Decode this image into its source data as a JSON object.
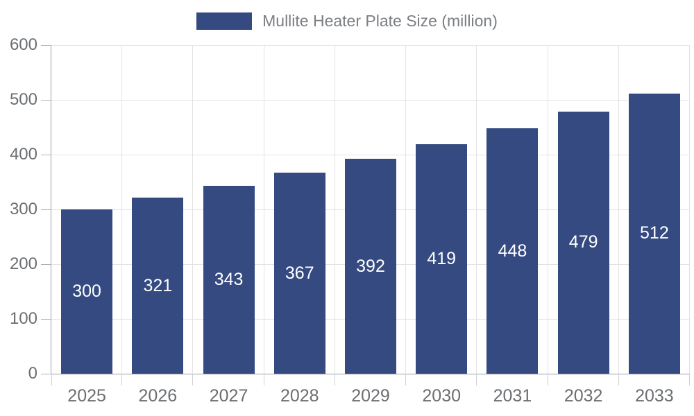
{
  "chart_data": {
    "type": "bar",
    "title": "Mullite Heater Plate Size (million)",
    "legend": [
      "Mullite Heater Plate Size (million)"
    ],
    "legend_position": "top-center",
    "categories": [
      "2025",
      "2026",
      "2027",
      "2028",
      "2029",
      "2030",
      "2031",
      "2032",
      "2033"
    ],
    "values": [
      300,
      321,
      343,
      367,
      392,
      419,
      448,
      479,
      512
    ],
    "value_labels_shown": true,
    "xlabel": "",
    "ylabel": "",
    "ylim": [
      0,
      600
    ],
    "yticks": [
      0,
      100,
      200,
      300,
      400,
      500,
      600
    ],
    "grid": true
  },
  "colors": {
    "bar": "#354a80",
    "gridline": "#e3e3e3",
    "axis_line": "#9b9da0",
    "axis_text": "#6b6e71",
    "legend_text": "#7b7e83",
    "value_label": "#ffffff",
    "background": "#ffffff"
  }
}
